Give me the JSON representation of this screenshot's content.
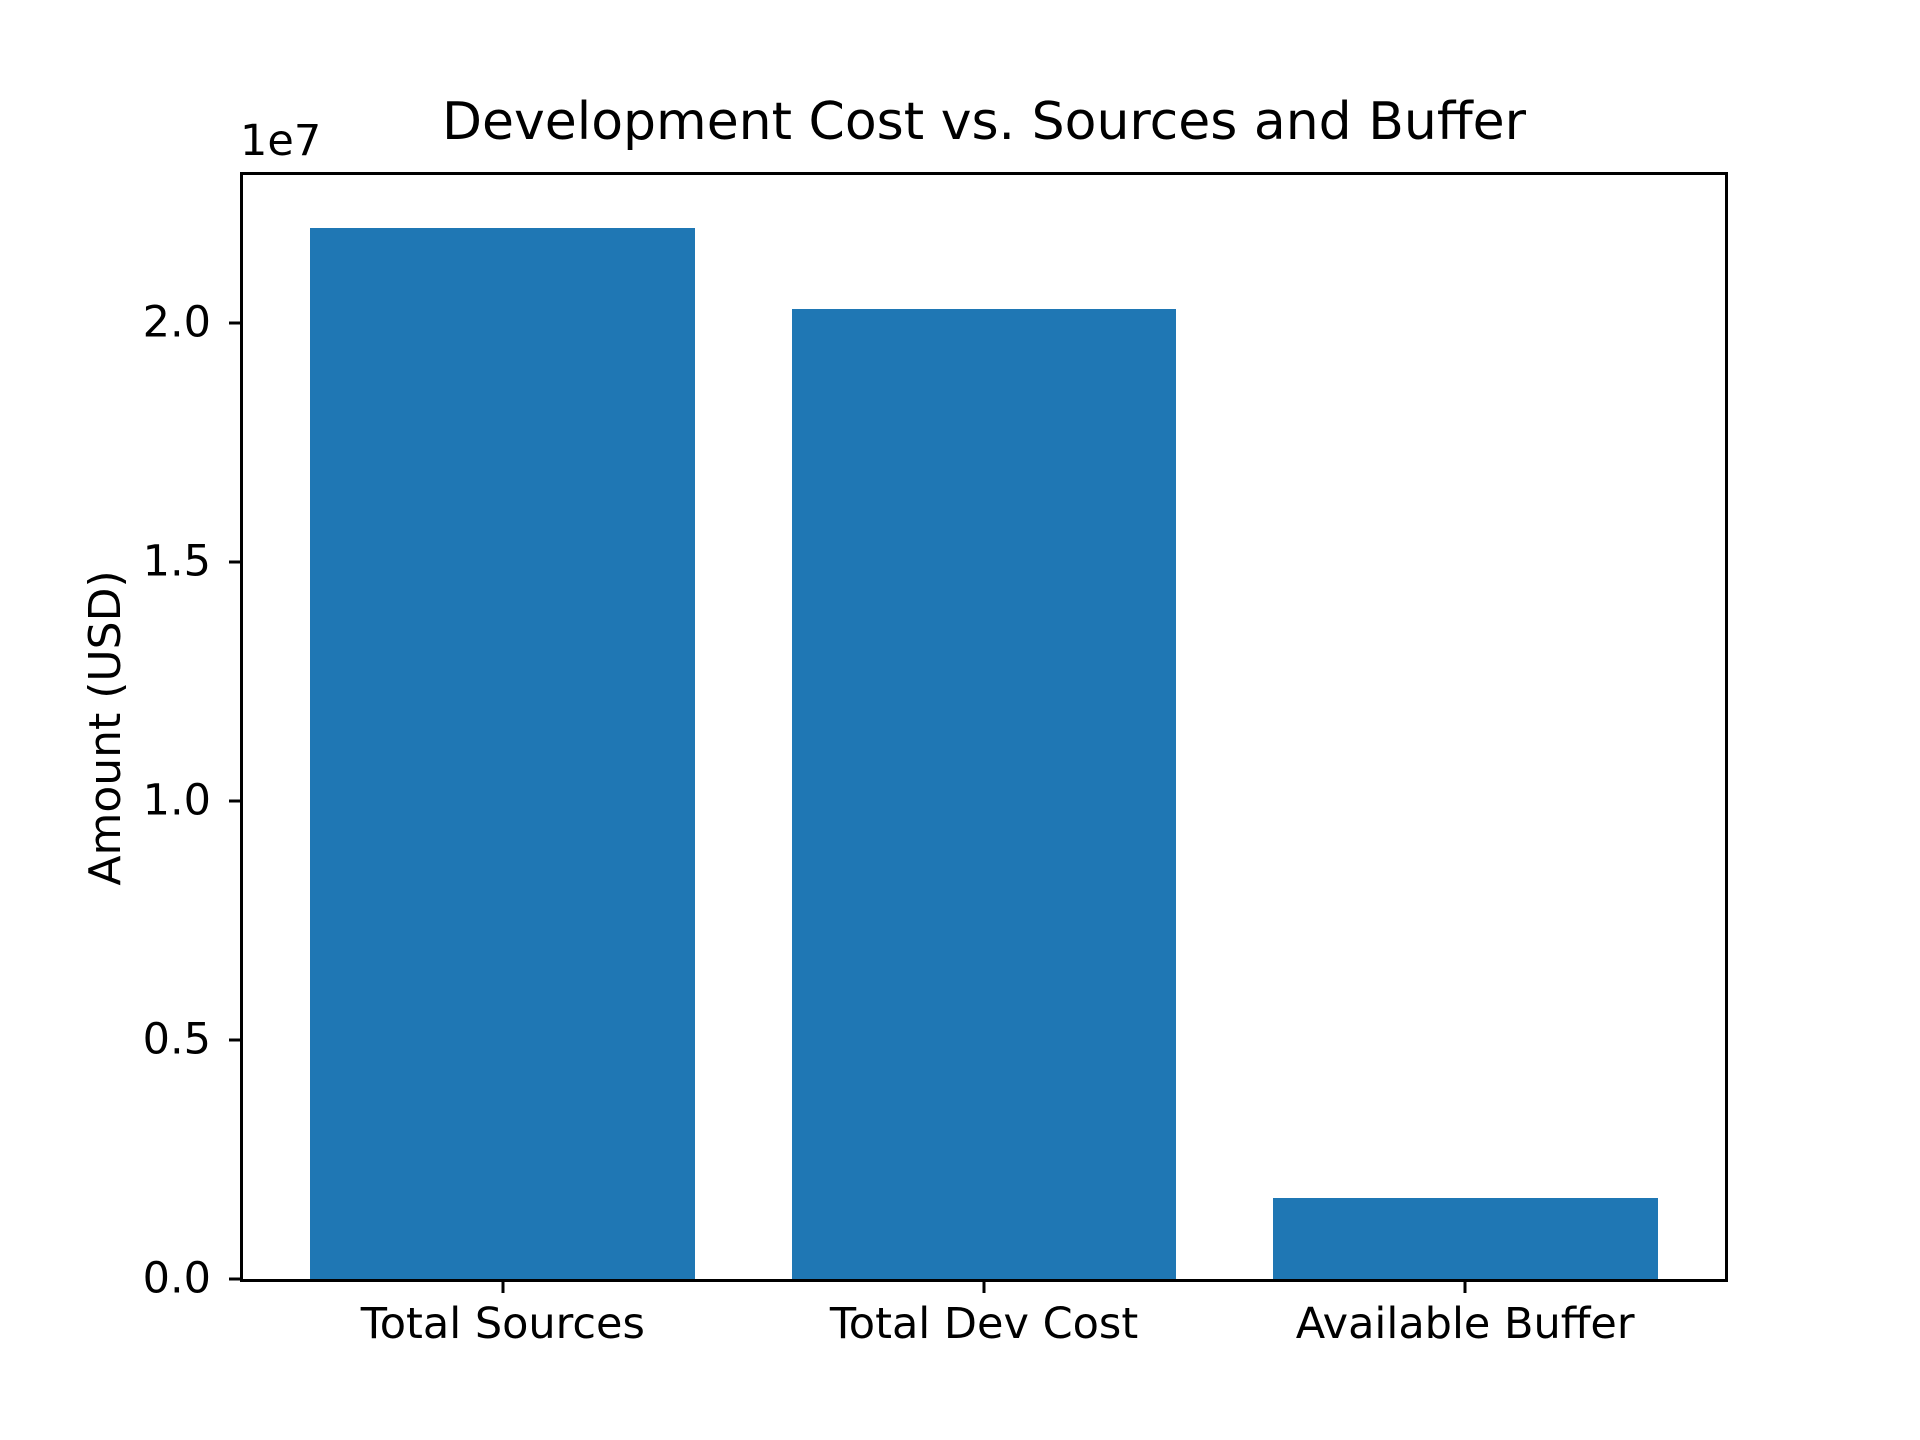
{
  "chart_data": {
    "type": "bar",
    "title": "Development Cost vs. Sources and Buffer",
    "xlabel": "",
    "ylabel": "Amount (USD)",
    "y_offset_label": "1e7",
    "categories": [
      "Total Sources",
      "Total Dev Cost",
      "Available Buffer"
    ],
    "values": [
      22000000,
      20300000,
      1700000
    ],
    "ylim": [
      0,
      23100000
    ],
    "yticks": [
      {
        "value": 0,
        "label": "0.0"
      },
      {
        "value": 5000000,
        "label": "0.5"
      },
      {
        "value": 10000000,
        "label": "1.0"
      },
      {
        "value": 15000000,
        "label": "1.5"
      },
      {
        "value": 20000000,
        "label": "2.0"
      }
    ],
    "grid": false,
    "legend": "none",
    "bar_color": "#1f77b4",
    "axis_color": "#000000",
    "background_color": "#ffffff"
  }
}
